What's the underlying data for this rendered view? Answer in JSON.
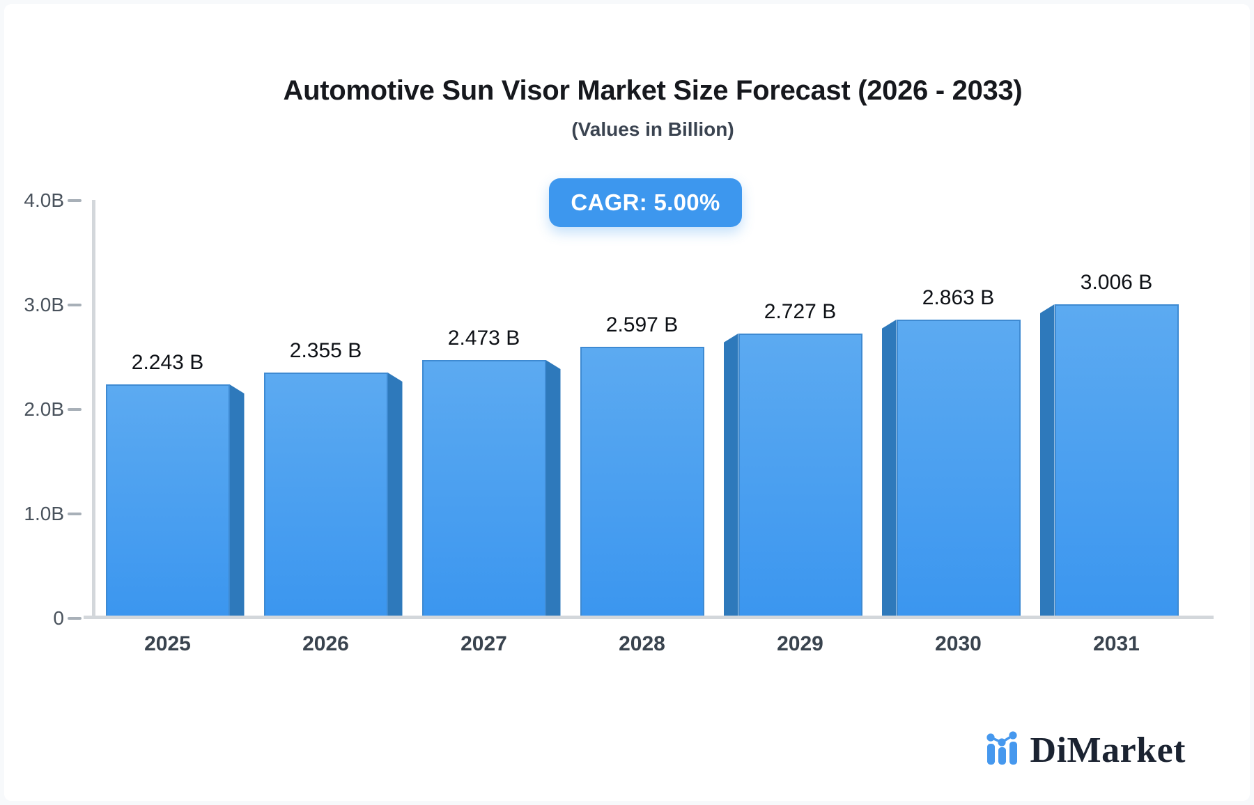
{
  "header": {
    "title": "Automotive Sun Visor Market Size Forecast (2026 - 2033)",
    "subtitle": "(Values in Billion)"
  },
  "badge": {
    "label": "CAGR: 5.00%"
  },
  "chart_data": {
    "type": "bar",
    "title": "Automotive Sun Visor Market Size Forecast (2026 - 2033)",
    "subtitle": "(Values in Billion)",
    "categories": [
      "2025",
      "2026",
      "2027",
      "2028",
      "2029",
      "2030",
      "2031"
    ],
    "values": [
      2.243,
      2.355,
      2.473,
      2.597,
      2.727,
      2.863,
      3.006
    ],
    "value_labels": [
      "2.243 B",
      "2.355 B",
      "2.473 B",
      "2.597 B",
      "2.727 B",
      "2.863 B",
      "3.006 B"
    ],
    "unit": "Billion",
    "ylim": [
      0,
      4
    ],
    "yticks": [
      {
        "value": 0,
        "label": "0"
      },
      {
        "value": 1,
        "label": "1.0B"
      },
      {
        "value": 2,
        "label": "2.0B"
      },
      {
        "value": 3,
        "label": "3.0B"
      },
      {
        "value": 4,
        "label": "4.0B"
      }
    ],
    "grid": false,
    "legend": "none",
    "bar_style": "3d-perspective-toward-center"
  },
  "logo": {
    "name": "DiMarket"
  },
  "colors": {
    "bar_face_top": "#5caaf1",
    "bar_face_bottom": "#3b96ef",
    "bar_side": "#2e79bb",
    "bar_border": "#3e8ad2",
    "axis_line": "#d3d7db",
    "tick_dash": "#a8b0b8",
    "tick_text": "#49525c",
    "category_text": "#39434e",
    "value_text": "#0e1116",
    "badge_bg": "#3d97ee",
    "badge_text": "#ffffff",
    "logo_blue": "#4698ee",
    "logo_text": "#1b2331",
    "title_text": "#16181d",
    "subtitle_text": "#3a4350",
    "page_edge": "#f7f9fb",
    "card_bg": "#ffffff"
  }
}
